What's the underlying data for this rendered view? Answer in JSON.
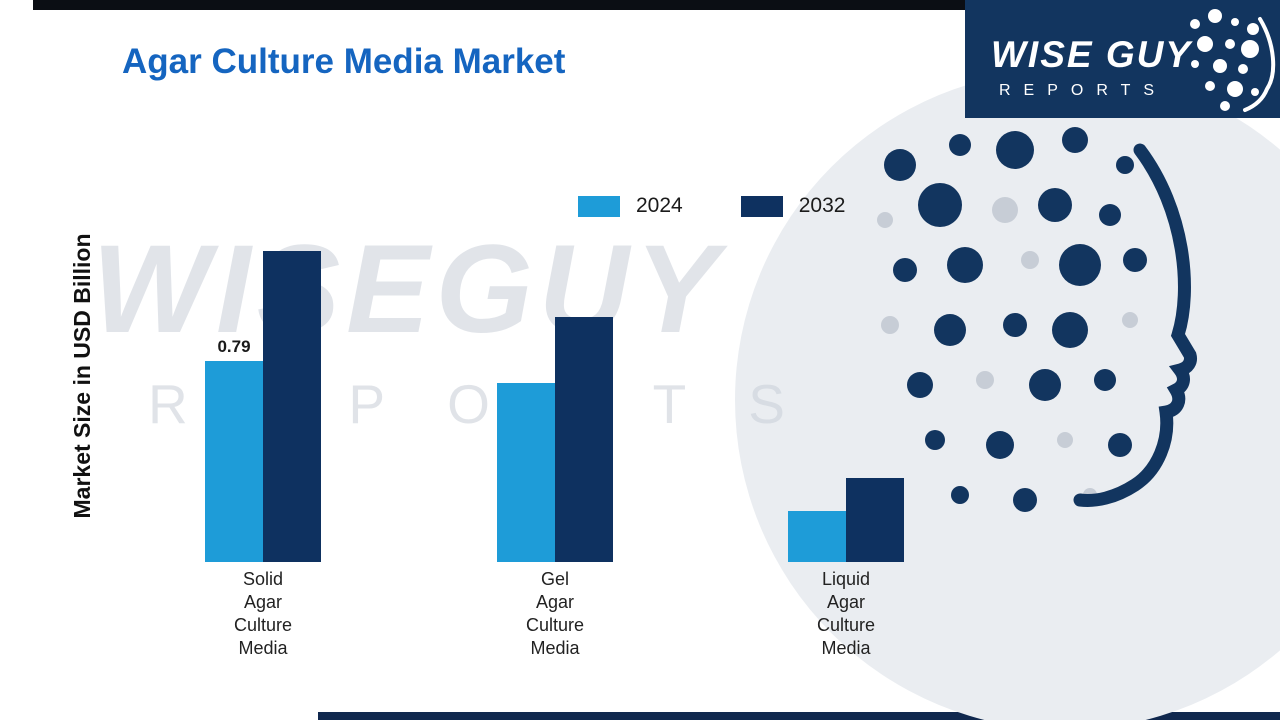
{
  "header": {
    "title": "Agar Culture Media Market"
  },
  "logo": {
    "name_line": "WISE GUY",
    "sub_line": "REPORTS"
  },
  "watermark": {
    "name_line": "WISEGUY",
    "sub_line": "REPORTS"
  },
  "colors": {
    "title_blue": "#1565c0",
    "logo_navy": "#12355f",
    "series_2024": "#1e9cd8",
    "series_2032": "#0e3160",
    "watermark_grey": "#ccd2da"
  },
  "chart_data": {
    "type": "bar",
    "title": "Agar Culture Media Market",
    "xlabel": "",
    "ylabel": "Market Size in USD Billion",
    "categories": [
      "Solid Agar Culture Media",
      "Gel Agar Culture Media",
      "Liquid Agar Culture Media"
    ],
    "series": [
      {
        "name": "2024",
        "color": "#1e9cd8",
        "values": [
          0.79,
          0.7,
          0.2
        ],
        "labels": [
          "0.79",
          "",
          ""
        ]
      },
      {
        "name": "2032",
        "color": "#0e3160",
        "values": [
          1.22,
          0.96,
          0.33
        ],
        "labels": [
          "",
          "",
          ""
        ]
      }
    ],
    "ylim": [
      0,
      1.4
    ],
    "grid": false,
    "legend_position": "top-center",
    "value_labels_shown": [
      "Solid Agar Culture Media 2024 = 0.79"
    ]
  }
}
